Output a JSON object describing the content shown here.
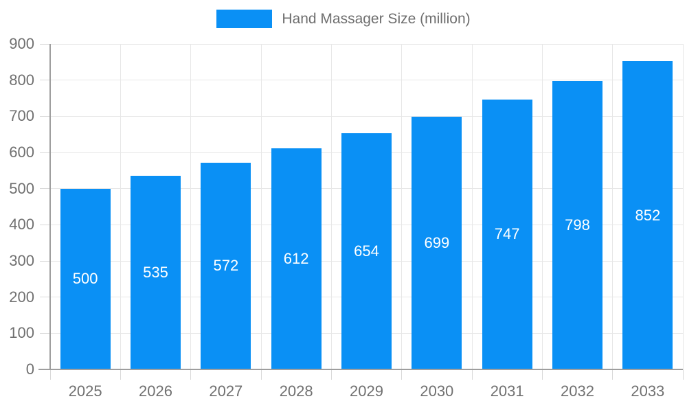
{
  "chart_data": {
    "type": "bar",
    "title": "",
    "legend": "Hand Massager Size (million)",
    "legend_position": "top",
    "categories": [
      "2025",
      "2026",
      "2027",
      "2028",
      "2029",
      "2030",
      "2031",
      "2032",
      "2033"
    ],
    "series": [
      {
        "name": "Hand Massager Size (million)",
        "values": [
          500,
          535,
          572,
          612,
          654,
          699,
          747,
          798,
          852
        ]
      }
    ],
    "value_labels_shown": true,
    "xlabel": "",
    "ylabel": "",
    "ylim": [
      0,
      900
    ],
    "ytick_step": 100,
    "grid": true,
    "colors": {
      "bar": "#0a90f5",
      "bar_value_label": "#ffffff",
      "axis_text": "#707070",
      "legend_text": "#6e6e6e",
      "grid_line": "#e7e7e7",
      "axis_line": "#9e9e9e",
      "tick": "#d9d9d9",
      "background": "#ffffff"
    }
  }
}
